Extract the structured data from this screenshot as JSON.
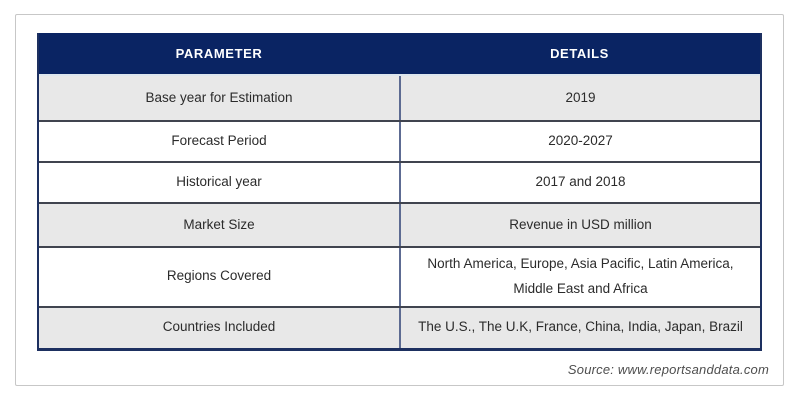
{
  "table": {
    "headers": {
      "parameter": "PARAMETER",
      "details": "DETAILS"
    },
    "rows": [
      {
        "parameter": "Base year for Estimation",
        "details": "2019"
      },
      {
        "parameter": "Forecast Period",
        "details": "2020-2027"
      },
      {
        "parameter": "Historical year",
        "details": "2017 and 2018"
      },
      {
        "parameter": "Market Size",
        "details": "Revenue in USD million"
      },
      {
        "parameter": "Regions Covered",
        "details": "North America, Europe, Asia Pacific, Latin America, Middle East and Africa"
      },
      {
        "parameter": "Countries Included",
        "details": "The U.S., The U.K, France, China, India, Japan, Brazil"
      }
    ]
  },
  "source_caption": "Source: www.reportsanddata.com",
  "colors": {
    "header_bg": "#0a2463",
    "header_text": "#ffffff",
    "shaded_row_bg": "#e8e8e8",
    "row_separator": "#40444f",
    "column_divider": "#5d6b92",
    "table_border": "#1d3060",
    "frame_border": "#c7c7c7",
    "cell_text": "#2b2b2b",
    "source_text": "#4e4e4e"
  },
  "chart_data": {
    "type": "table",
    "title": "Report scope parameters table",
    "columns": [
      "PARAMETER",
      "DETAILS"
    ],
    "rows": [
      [
        "Base year for Estimation",
        "2019"
      ],
      [
        "Forecast Period",
        "2020-2027"
      ],
      [
        "Historical year",
        "2017 and 2018"
      ],
      [
        "Market Size",
        "Revenue in USD million"
      ],
      [
        "Regions Covered",
        "North America, Europe, Asia Pacific, Latin America, Middle East and Africa"
      ],
      [
        "Countries Included",
        "The U.S., The U.K, France, China, India, Japan, Brazil"
      ]
    ],
    "shaded_row_indices": [
      0,
      3,
      5
    ],
    "source": "Source: www.reportsanddata.com"
  }
}
